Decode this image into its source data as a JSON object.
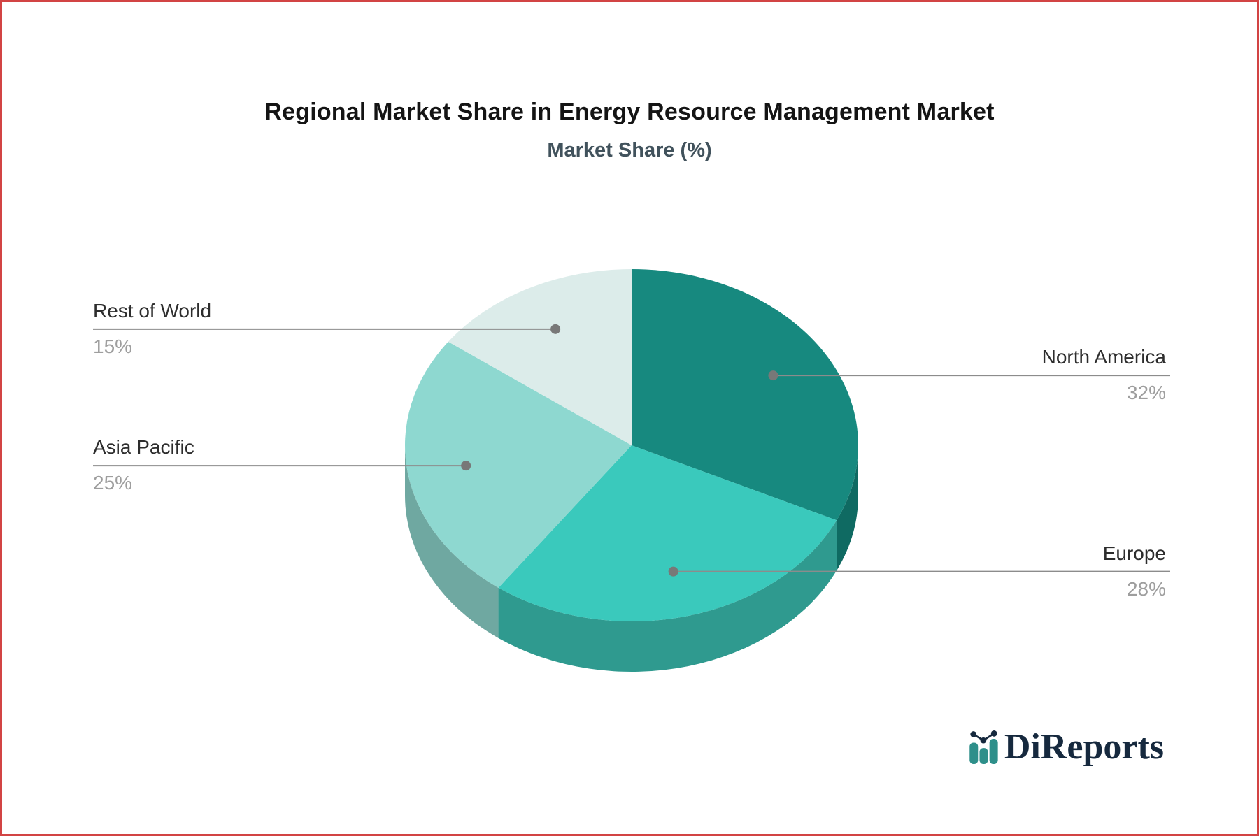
{
  "page": {
    "background": "#ffffff",
    "border_color": "#d24444"
  },
  "header": {
    "title": "Regional Market Share in Energy Resource Management Market",
    "subtitle": "Market Share (%)"
  },
  "chart_data": {
    "type": "pie",
    "title": "Regional Market Share in Energy Resource Management Market",
    "subtitle": "Market Share (%)",
    "unit": "%",
    "appearance": "3d-pie",
    "start_angle_deg": 0,
    "direction": "clockwise",
    "categories": [
      "North America",
      "Europe",
      "Asia Pacific",
      "Rest of World"
    ],
    "values": [
      32,
      28,
      25,
      15
    ],
    "series": [
      {
        "label": "North America",
        "value": 32,
        "pct_label": "32%",
        "color": "#17897f",
        "side_color": "#0f6a62",
        "label_side": "right"
      },
      {
        "label": "Europe",
        "value": 28,
        "pct_label": "28%",
        "color": "#3ac9bc",
        "side_color": "#2f9a8f",
        "label_side": "right"
      },
      {
        "label": "Asia Pacific",
        "value": 25,
        "pct_label": "25%",
        "color": "#8ed8d0",
        "side_color": "#6fa8a1",
        "label_side": "left"
      },
      {
        "label": "Rest of World",
        "value": 15,
        "pct_label": "15%",
        "color": "#dcecea",
        "side_color": "#b9cdca",
        "label_side": "left"
      }
    ],
    "style": {
      "leader_line_color": "#8c8c8c",
      "dot_color": "#787878",
      "label_color": "#2d2d2d",
      "pct_color": "#9e9e9e"
    }
  },
  "logo": {
    "text": "DiReports",
    "text_color": "#16293e",
    "icon": "bar-line-chart-icon",
    "icon_bar_color": "#2e8f8a",
    "icon_line_color": "#16293e"
  }
}
